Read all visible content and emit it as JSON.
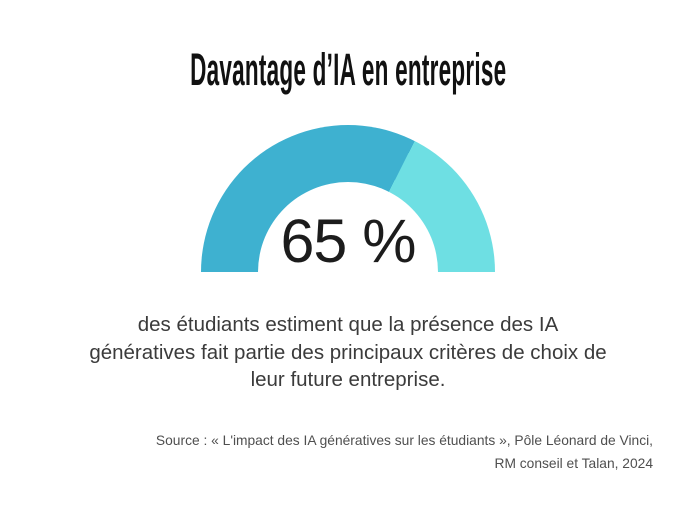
{
  "title": "Davantage d’IA en entreprise",
  "chart_data": {
    "type": "pie",
    "subtype": "half-donut-gauge",
    "title": "Davantage d’IA en entreprise",
    "value": 65,
    "value_label": "65 %",
    "unit": "%",
    "start_angle_deg": 180,
    "sweep_deg": 180,
    "segments": [
      {
        "name": "étudiants estimant que la présence des IA génératives est un critère de choix",
        "value": 65,
        "color": "#3eb1d0"
      },
      {
        "name": "reste",
        "value": 35,
        "color": "#6edfe3"
      }
    ],
    "legend": "none",
    "grid": false
  },
  "statement": {
    "text": "des étudiants estiment que la présence des IA génératives fait partie des principaux critères de choix de leur future entreprise.",
    "lines": [
      "des étudiants estiment que la présence des IA",
      "génératives fait partie des principaux critères de choix de",
      "leur future entreprise."
    ]
  },
  "source": {
    "text": "Source : « L'impact des IA génératives sur les étudiants », Pôle Léonard de Vinci, RM conseil et Talan, 2024",
    "lines": [
      "Source : « L'impact des IA génératives sur les étudiants », Pôle Léonard de Vinci,",
      "RM conseil et Talan, 2024"
    ]
  },
  "colors": {
    "gauge_filled": "#3eb1d0",
    "gauge_remainder": "#6edfe3",
    "title": "#111111",
    "statement": "#3b3b3b",
    "source": "#4f4f4f",
    "background": "#ffffff"
  }
}
